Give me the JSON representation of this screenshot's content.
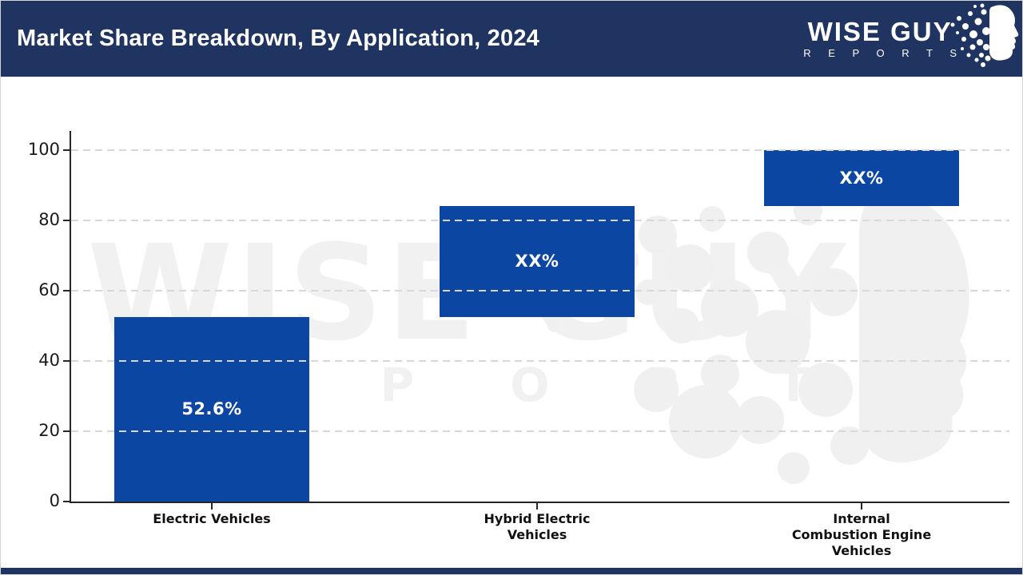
{
  "header": {
    "title": "Market Share Breakdown, By Application, 2024",
    "logo": {
      "line1": "WISE GUY",
      "line2": "R E P O R T S",
      "icon": "dotted-head-profile"
    }
  },
  "watermark": {
    "line1": "WISE GUY",
    "line2": "R E P O R T S",
    "icon": "dotted-head-profile"
  },
  "chart_data": {
    "type": "bar",
    "subtype": "floating-stacked-waterfall",
    "title": "Market Share Breakdown, By Application, 2024",
    "categories": [
      "Electric Vehicles",
      "Hybrid Electric\nVehicles",
      "Internal\nCombustion Engine\nVehicles"
    ],
    "bars": [
      {
        "category": "Electric Vehicles",
        "start": 0,
        "end": 52.6,
        "label": "52.6%"
      },
      {
        "category": "Hybrid Electric Vehicles",
        "start": 52.6,
        "end": 84,
        "label": "XX%"
      },
      {
        "category": "Internal Combustion Engine Vehicles",
        "start": 84,
        "end": 100,
        "label": "XX%"
      }
    ],
    "ylim": [
      0,
      100
    ],
    "yticks": [
      0,
      20,
      40,
      60,
      80,
      100
    ],
    "grid": "dashed-horizontal",
    "legend": "none",
    "xlabel": "",
    "ylabel": ""
  },
  "colors": {
    "header_bg": "#203462",
    "footer_bg": "#203462",
    "bar": "#0b46a3",
    "bar_label": "#ffffff",
    "grid": "#d8d8d8",
    "axis": "#262626",
    "tick_text": "#1a1a1a",
    "watermark": "#f1f1f1"
  }
}
